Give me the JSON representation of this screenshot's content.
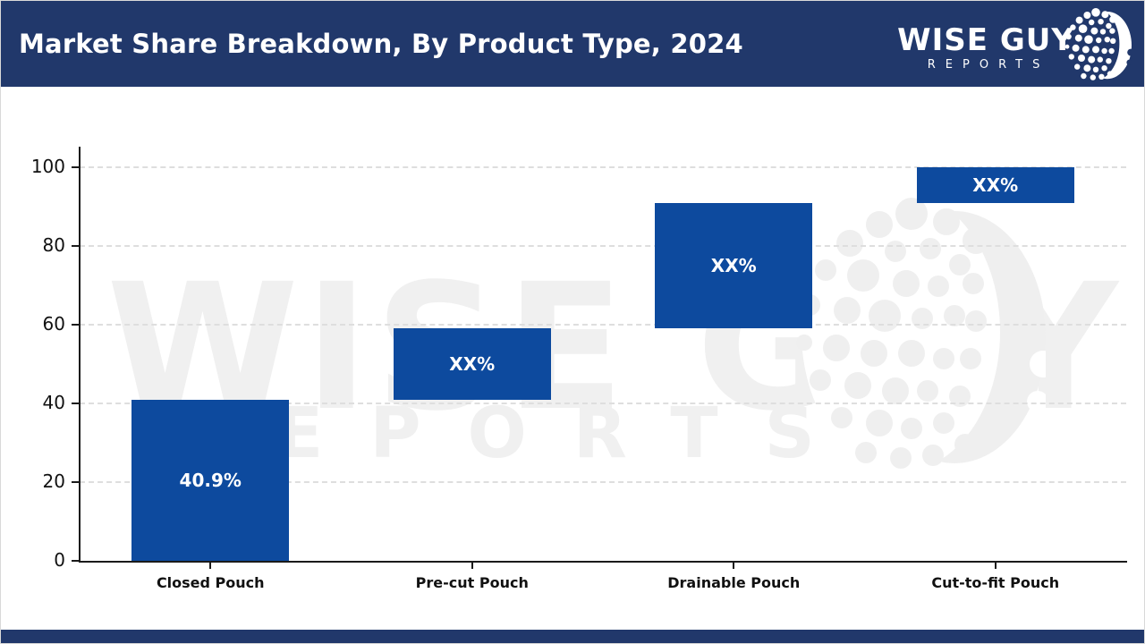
{
  "header": {
    "title": "Market Share Breakdown, By Product Type, 2024",
    "bg_color": "#21386b",
    "logo": {
      "line1": "WISE GUY",
      "line2": "REPORTS"
    }
  },
  "watermark": {
    "line1": "WISE GUY",
    "line2": "REPORTS"
  },
  "chart_data": {
    "type": "bar",
    "subtype": "waterfall-floating-bars",
    "title": "Market Share Breakdown, By Product Type, 2024",
    "categories": [
      "Closed Pouch",
      "Pre-cut Pouch",
      "Drainable Pouch",
      "Cut-to-fit Pouch"
    ],
    "series": [
      {
        "name": "Market share cumulative (%)",
        "starts": [
          0,
          40.9,
          59.1,
          90.9
        ],
        "ends": [
          40.9,
          59.1,
          90.9,
          100
        ]
      }
    ],
    "bar_labels": [
      "40.9%",
      "XX%",
      "XX%",
      "XX%"
    ],
    "yticks": [
      0,
      20,
      40,
      60,
      80,
      100
    ],
    "ylim": [
      0,
      105
    ],
    "xlabel": "",
    "ylabel": "",
    "grid": "horizontal-dashed",
    "legend": "none",
    "bar_color": "#0d4a9e",
    "label_color": "#ffffff",
    "axis_color": "#1a1a1a",
    "gridline_color": "#dedede"
  },
  "footer": {
    "bg_color": "#21386b"
  }
}
